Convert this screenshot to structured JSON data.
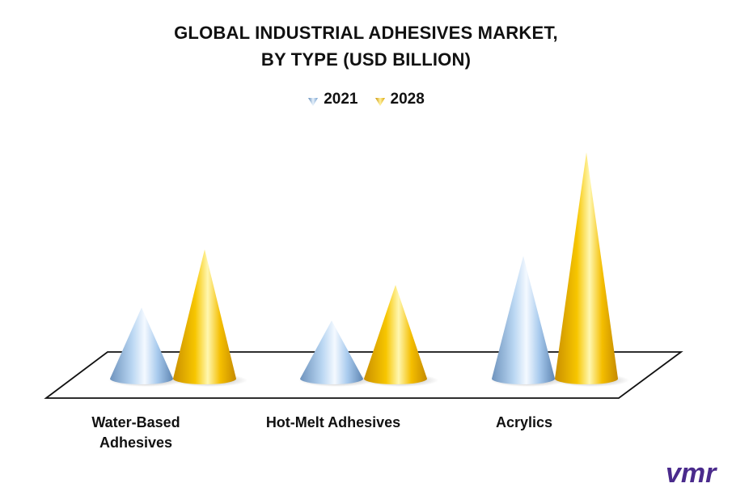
{
  "chart_data": {
    "type": "bar",
    "title_lines": [
      "GLOBAL INDUSTRIAL ADHESIVES MARKET,",
      "BY TYPE (USD BILLION)"
    ],
    "categories": [
      "Water-Based\nAdhesives",
      "Hot-Melt Adhesives",
      "Acrylics"
    ],
    "series": [
      {
        "name": "2021",
        "values": [
          22,
          18,
          38
        ],
        "color": "#9dc3e6"
      },
      {
        "name": "2028",
        "values": [
          40,
          29,
          70
        ],
        "color": "#f2b800"
      }
    ],
    "ylim": [
      0,
      72
    ],
    "grid": false,
    "legend_position": "top-center",
    "style": "3d-cone"
  },
  "brand": {
    "logo_text": "vmr",
    "color": "#4a2a8c"
  }
}
